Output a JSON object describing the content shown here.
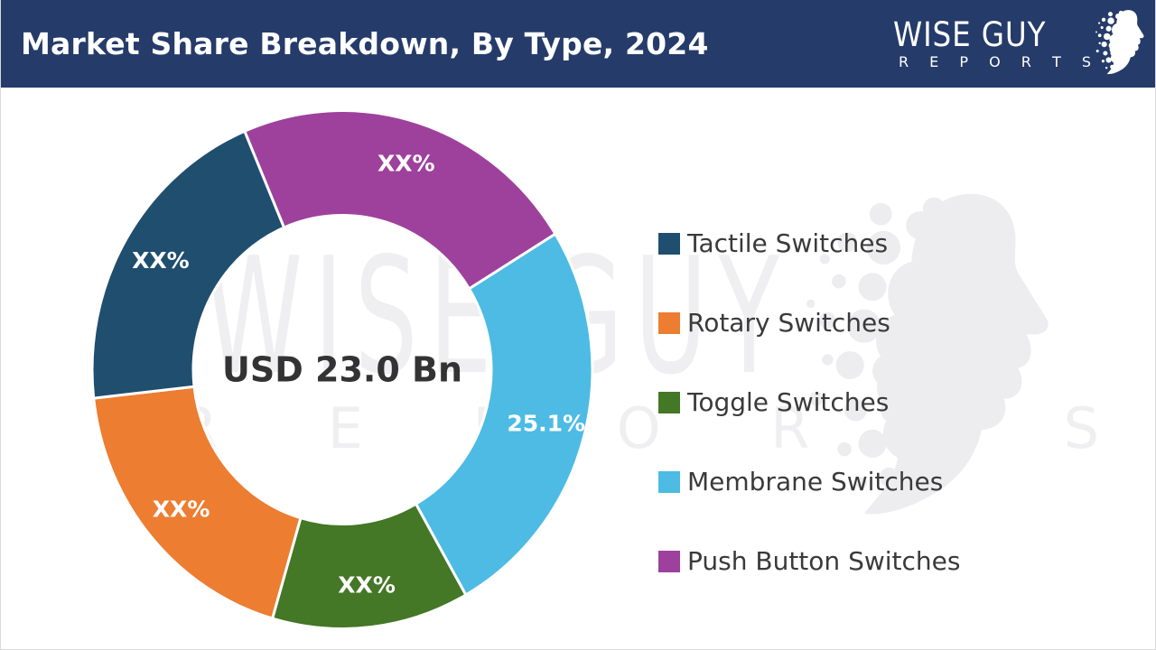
{
  "header": {
    "title": "Market Share Breakdown, By Type, 2024",
    "logo": {
      "line1": "WISE GUY",
      "line2": "R E P O R T S"
    }
  },
  "watermark": {
    "line1": "WISE GUY",
    "line2": "R E P O R T S"
  },
  "chart_data": {
    "type": "pie",
    "subtype": "donut",
    "title": "Market Share Breakdown, By Type, 2024",
    "center_label": "USD 23.0 Bn",
    "legend_position": "right",
    "start_angle_deg": -23,
    "draw_order": [
      4,
      3,
      2,
      1,
      0
    ],
    "slices": [
      {
        "name": "Tactile Switches",
        "color": "#1F4E6F",
        "share_pct": 20.0,
        "display_label": "XX%"
      },
      {
        "name": "Rotary Switches",
        "color": "#ED7D31",
        "share_pct": 18.4,
        "display_label": "XX%"
      },
      {
        "name": "Toggle Switches",
        "color": "#447726",
        "share_pct": 12.5,
        "display_label": "XX%"
      },
      {
        "name": "Membrane Switches",
        "color": "#4DBBE4",
        "share_pct": 25.1,
        "display_label": "25.1%"
      },
      {
        "name": "Push Button Switches",
        "color": "#9E419C",
        "share_pct": 22.2,
        "display_label": "XX%"
      }
    ]
  },
  "colors": {
    "header_bg": "#253B6A",
    "title_text": "#FFFFFF",
    "legend_text": "#3A3A3A",
    "center_text": "#333333",
    "watermark": "#EFEFF2",
    "page_border": "#D9D9D9"
  }
}
